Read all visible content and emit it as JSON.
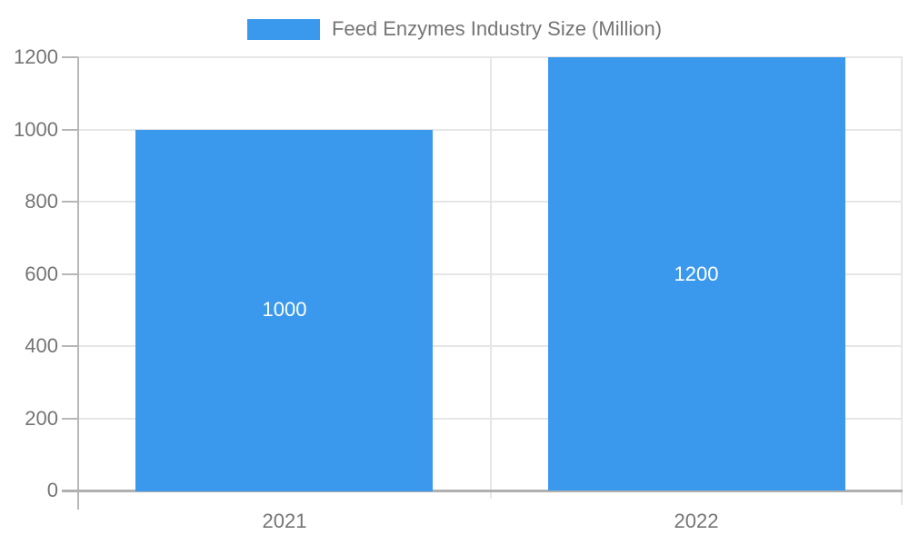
{
  "legend": {
    "label": "Feed Enzymes Industry Size (Million)"
  },
  "chart_data": {
    "type": "bar",
    "title": "",
    "xlabel": "",
    "ylabel": "",
    "categories": [
      "2021",
      "2022"
    ],
    "series": [
      {
        "name": "Feed Enzymes Industry Size (Million)",
        "values": [
          1000,
          1200
        ],
        "color": "#3a99ec"
      }
    ],
    "value_labels": [
      "1000",
      "1200"
    ],
    "ylim": [
      0,
      1200
    ],
    "yticks": [
      0,
      200,
      400,
      600,
      800,
      1000,
      1200
    ],
    "grid": true,
    "legend_position": "top",
    "colors": {
      "bar": "#3a99ec",
      "grid": "#e6e6e6",
      "axis_line": "#b7b7b7",
      "baseline": "#b0b0b0",
      "text": "#757575",
      "value_label": "#ffffff",
      "background": "#ffffff"
    }
  }
}
